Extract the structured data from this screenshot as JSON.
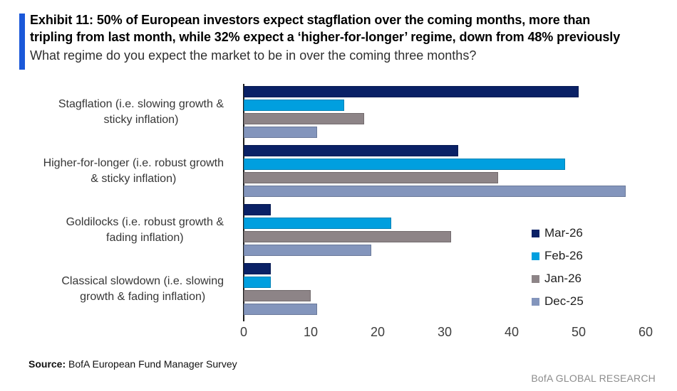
{
  "header": {
    "title": "Exhibit 11: 50% of European investors expect stagflation over the coming months, more than\ntripling from last month, while 32% expect a ‘higher-for-longer’ regime, down from 48% previously",
    "subtitle": "What regime do you expect the market to be in over the coming three months?",
    "accent_color": "#1A58D9"
  },
  "chart_data": {
    "type": "bar",
    "orientation": "horizontal",
    "title": "What regime do you expect the market to be in over the coming three months?",
    "xlabel": "",
    "ylabel": "",
    "xlim": [
      0,
      60
    ],
    "xticks": [
      0,
      10,
      20,
      30,
      40,
      50,
      60
    ],
    "grid": false,
    "legend_position": "right-middle",
    "categories": [
      "Stagflation (i.e. slowing growth &\nsticky inflation)",
      "Higher-for-longer (i.e. robust growth\n& sticky inflation)",
      "Goldilocks (i.e. robust growth &\nfading inflation)",
      "Classical slowdown (i.e. slowing\ngrowth & fading inflation)"
    ],
    "series": [
      {
        "name": "Mar-26",
        "color": "#0A2166",
        "values": [
          50,
          32,
          4,
          4
        ]
      },
      {
        "name": "Feb-26",
        "color": "#009FDF",
        "values": [
          15,
          48,
          22,
          4
        ]
      },
      {
        "name": "Jan-26",
        "color": "#8D8487",
        "values": [
          18,
          38,
          31,
          10
        ]
      },
      {
        "name": "Dec-25",
        "color": "#8395BC",
        "values": [
          11,
          57,
          19,
          11
        ]
      }
    ]
  },
  "footer": {
    "source_label": "Source:",
    "source_text": " BofA European Fund Manager Survey",
    "brand": "BofA GLOBAL RESEARCH"
  }
}
